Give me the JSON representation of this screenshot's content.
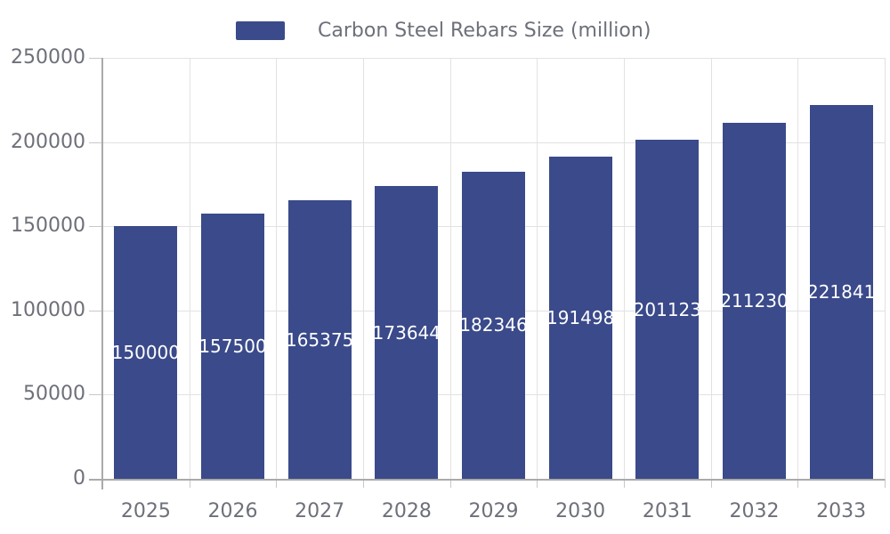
{
  "legend": {
    "label": "Carbon Steel Rebars Size (million)"
  },
  "colors": {
    "bar": "#3A4A8A",
    "grid": "#E2E2E2",
    "axis_line": "#AAAAAA",
    "tick": "#C8C8C8",
    "axis_text": "#6E7079",
    "bar_label": "#FFFFFF",
    "background": "#FFFFFF"
  },
  "chart_data": {
    "type": "bar",
    "title": "Carbon Steel Rebars Size (million)",
    "categories": [
      "2025",
      "2026",
      "2027",
      "2028",
      "2029",
      "2030",
      "2031",
      "2032",
      "2033"
    ],
    "series": [
      {
        "name": "Carbon Steel Rebars Size (million)",
        "values": [
          150000,
          157500,
          165375,
          173644,
          182346,
          191498,
          201123,
          211230,
          221841
        ]
      }
    ],
    "xlabel": "",
    "ylabel": "",
    "ylim": [
      0,
      250000
    ],
    "y_ticks": [
      0,
      50000,
      100000,
      150000,
      200000,
      250000
    ],
    "y_tick_labels": [
      "0",
      "50000",
      "100000",
      "150000",
      "200000",
      "250000"
    ],
    "bar_value_labels": "inside-middle-white",
    "grid": true,
    "legend_position": "top-center"
  }
}
